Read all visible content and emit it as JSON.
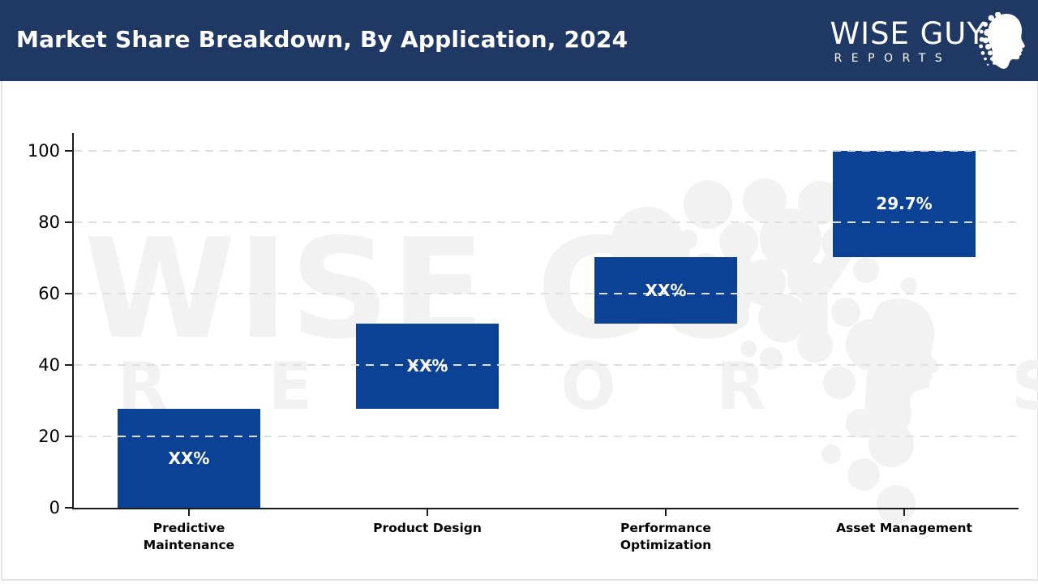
{
  "header": {
    "title": "Market Share Breakdown, By Application, 2024",
    "logo": {
      "name": "WISE GUY",
      "tagline": "REPORTS"
    }
  },
  "watermark": {
    "name": "WISE GUY",
    "tagline": "R E P O R T S"
  },
  "chart_data": {
    "type": "bar",
    "subtype": "waterfall",
    "title": "Market Share Breakdown, By Application, 2024",
    "categories": [
      "Predictive Maintenance",
      "Product Design",
      "Performance Optimization",
      "Asset Management"
    ],
    "category_label_lines": [
      [
        "Predictive",
        "Maintenance"
      ],
      [
        "Product Design"
      ],
      [
        "Performance",
        "Optimization"
      ],
      [
        "Asset Management"
      ]
    ],
    "values": [
      27.7,
      24.0,
      18.6,
      29.7
    ],
    "segment_ranges": [
      [
        0,
        27.7
      ],
      [
        27.7,
        51.7
      ],
      [
        51.7,
        70.3
      ],
      [
        70.3,
        100
      ]
    ],
    "bar_labels": [
      "XX%",
      "XX%",
      "XX%",
      "29.7%"
    ],
    "xlabel": "",
    "ylabel": "",
    "ylim": [
      0,
      105
    ],
    "yticks": [
      0,
      20,
      40,
      60,
      80,
      100
    ],
    "grid": {
      "horizontal": true,
      "style": "dashed",
      "above_bars": true
    },
    "legend": "none",
    "bar_color": "#0b4295",
    "bar_label_color": "#ffffff"
  },
  "colors": {
    "header_bg": "#1f3864",
    "header_text": "#ffffff",
    "page_bg": "#ffffff",
    "axis": "#1c1c1c",
    "tick_label": "#000000",
    "grid_line": "#e0e0e0",
    "watermark": "#f2f2f2"
  }
}
